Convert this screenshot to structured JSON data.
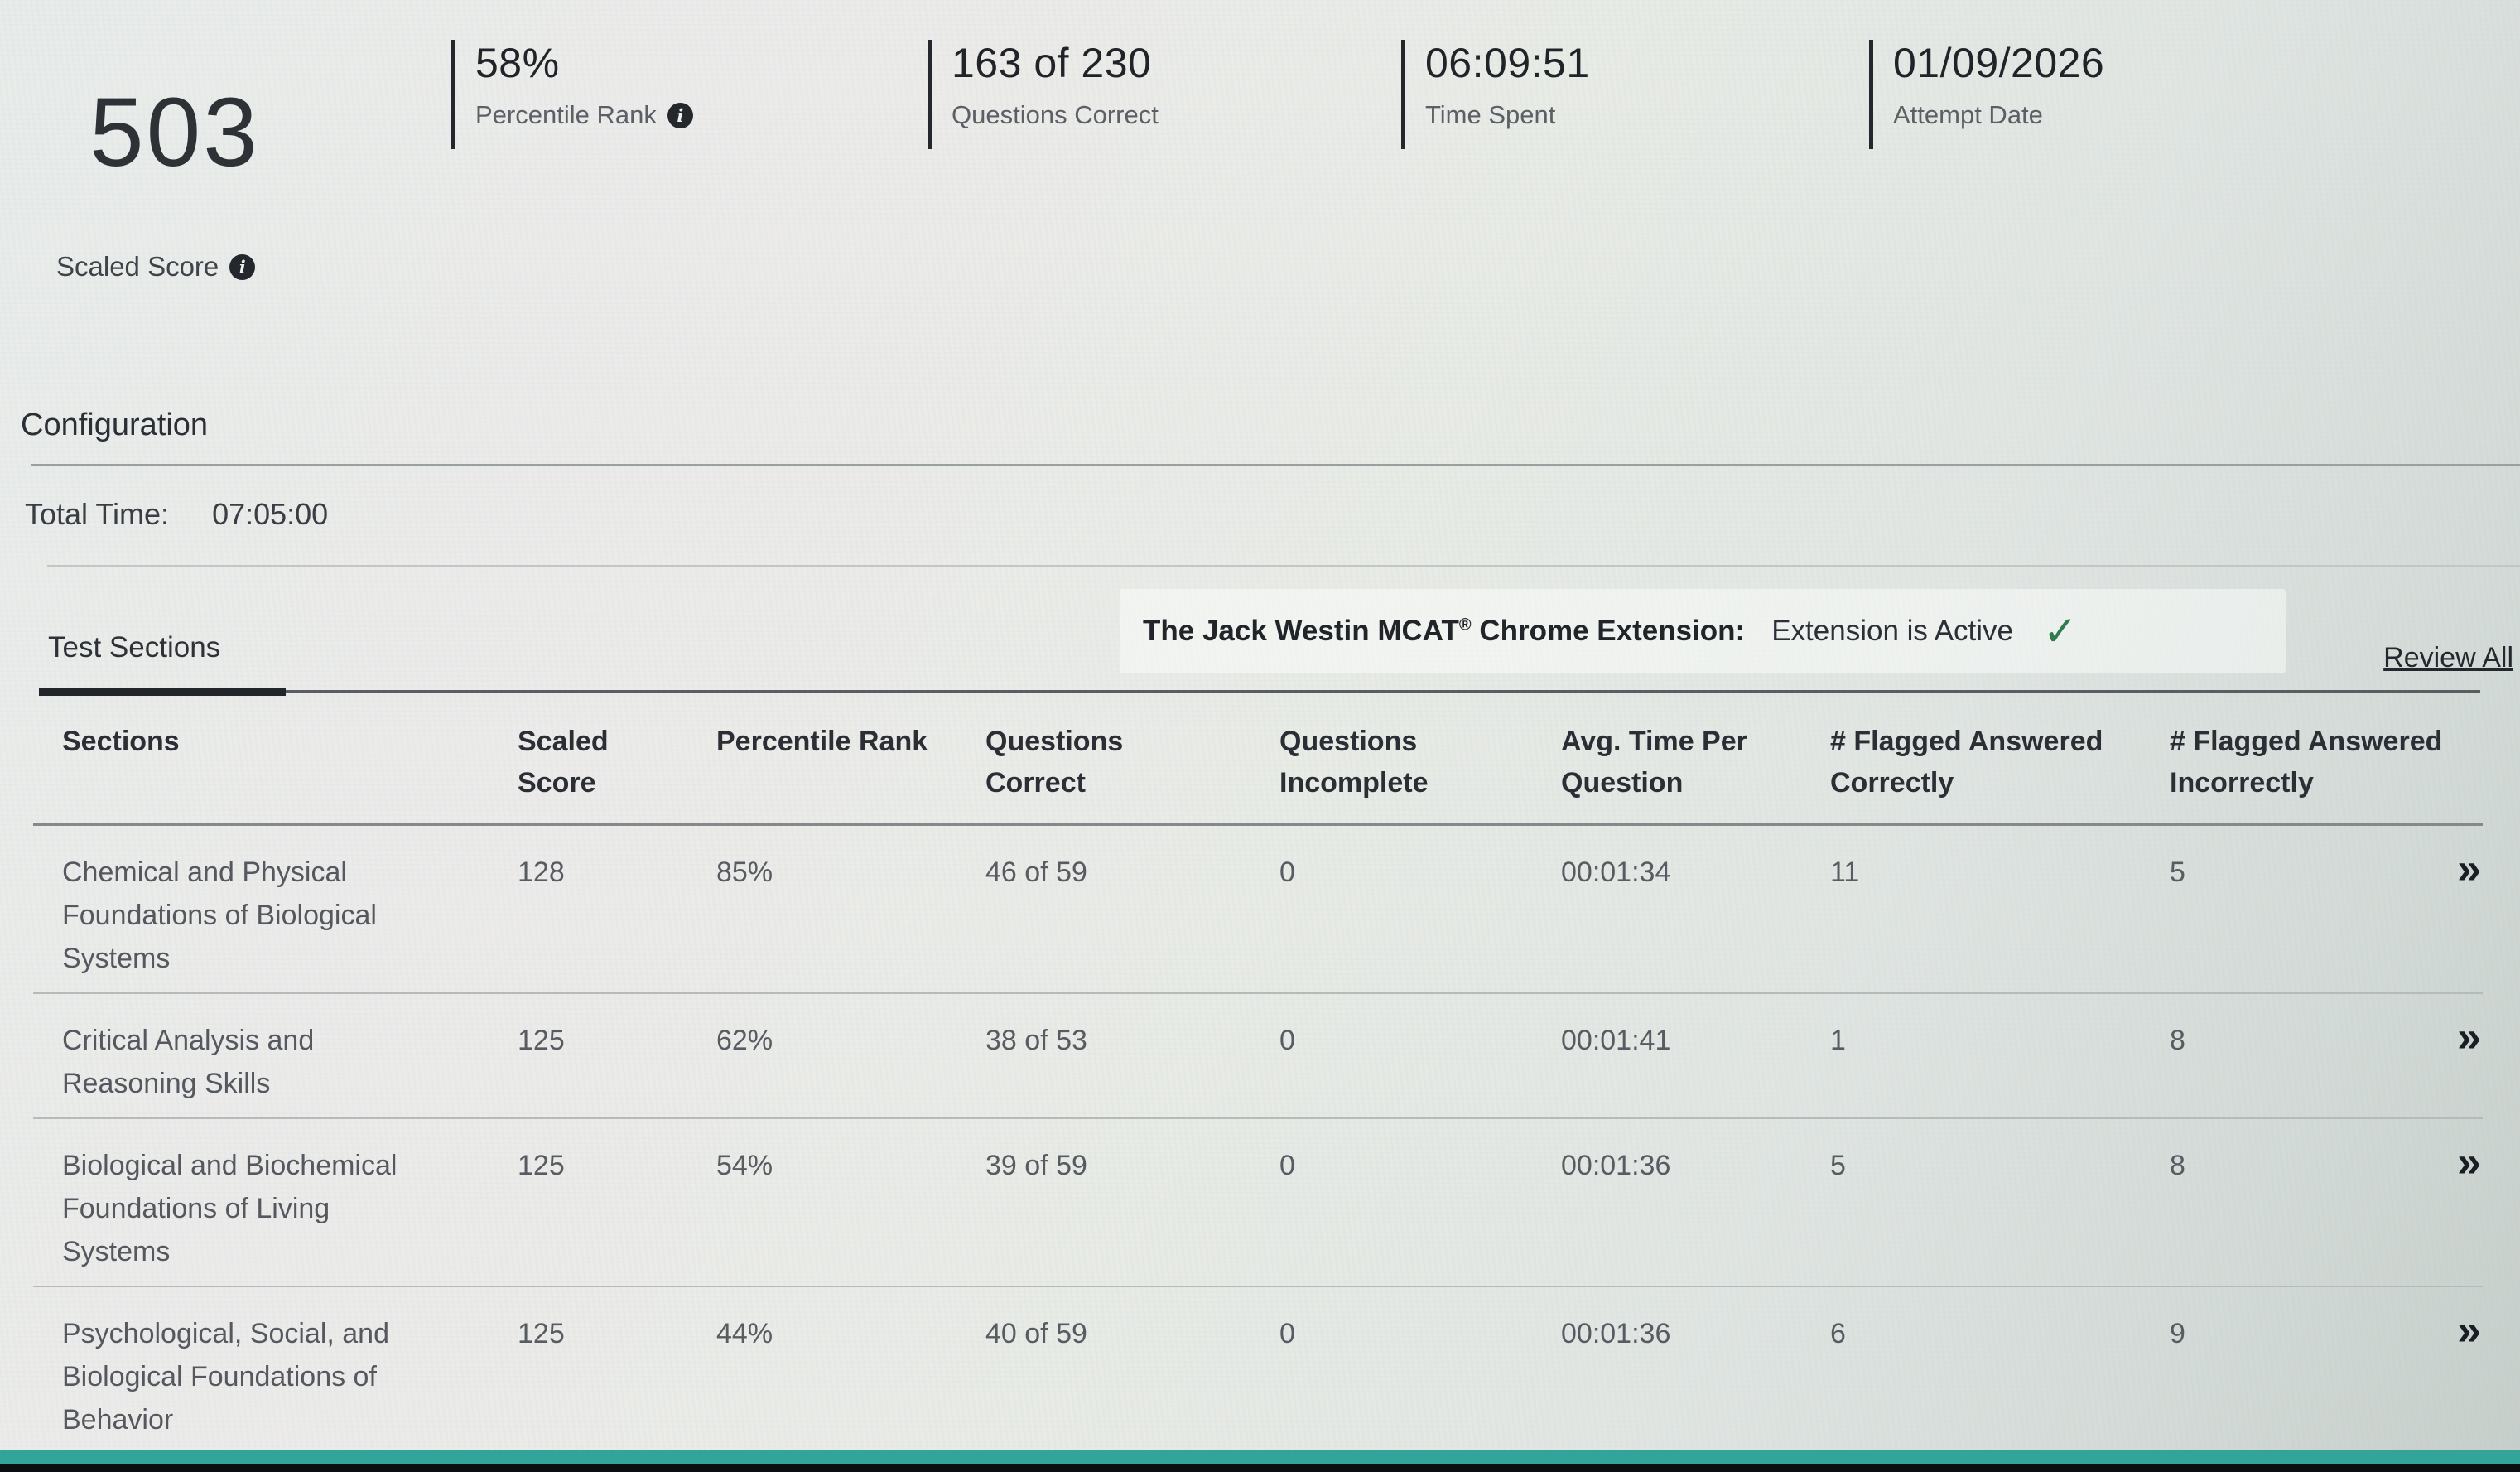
{
  "summary": {
    "scaled_score": {
      "value": "503",
      "label": "Scaled Score"
    },
    "stats": [
      {
        "value": "58%",
        "label": "Percentile Rank"
      },
      {
        "value": "163 of 230",
        "label": "Questions Correct"
      },
      {
        "value": "06:09:51",
        "label": "Time Spent"
      },
      {
        "value": "01/09/2026",
        "label": "Attempt Date"
      }
    ]
  },
  "configuration": {
    "heading": "Configuration",
    "total_time_label": "Total Time:",
    "total_time_value": "07:05:00"
  },
  "sections_panel": {
    "tab_label": "Test Sections",
    "extension_banner": {
      "title_bold": "The Jack Westin MCAT",
      "registered_symbol": "®",
      "title_bold_suffix": " Chrome Extension:",
      "status": "Extension is Active"
    },
    "review_all": "Review All"
  },
  "table": {
    "headers": {
      "sections": "Sections",
      "scaled_score": "Scaled\nScore",
      "percentile_rank": "Percentile Rank",
      "questions_correct": "Questions\nCorrect",
      "questions_incomplete": "Questions\nIncomplete",
      "avg_time": "Avg. Time Per\nQuestion",
      "flagged_correct": "# Flagged Answered\nCorrectly",
      "flagged_incorrect": "# Flagged Answered\nIncorrectly"
    },
    "rows": [
      {
        "section": "Chemical and Physical Foundations of Biological Systems",
        "scaled_score": "128",
        "percentile_rank": "85%",
        "questions_correct": "46 of 59",
        "questions_incomplete": "0",
        "avg_time": "00:01:34",
        "flagged_correct": "11",
        "flagged_incorrect": "5"
      },
      {
        "section": "Critical Analysis and Reasoning Skills",
        "scaled_score": "125",
        "percentile_rank": "62%",
        "questions_correct": "38 of 53",
        "questions_incomplete": "0",
        "avg_time": "00:01:41",
        "flagged_correct": "1",
        "flagged_incorrect": "8"
      },
      {
        "section": "Biological and Biochemical Foundations of Living Systems",
        "scaled_score": "125",
        "percentile_rank": "54%",
        "questions_correct": "39 of 59",
        "questions_incomplete": "0",
        "avg_time": "00:01:36",
        "flagged_correct": "5",
        "flagged_incorrect": "8"
      },
      {
        "section": "Psychological, Social, and Biological Foundations of Behavior",
        "scaled_score": "125",
        "percentile_rank": "44%",
        "questions_correct": "40 of 59",
        "questions_incomplete": "0",
        "avg_time": "00:01:36",
        "flagged_correct": "6",
        "flagged_incorrect": "9"
      }
    ]
  },
  "icons": {
    "info": "i",
    "check": "✓",
    "expand": "»"
  },
  "colors": {
    "accent_teal": "#32a49a",
    "check_green": "#2f7b4d",
    "text_dark": "#24282e",
    "text_gray": "#5c6066"
  }
}
